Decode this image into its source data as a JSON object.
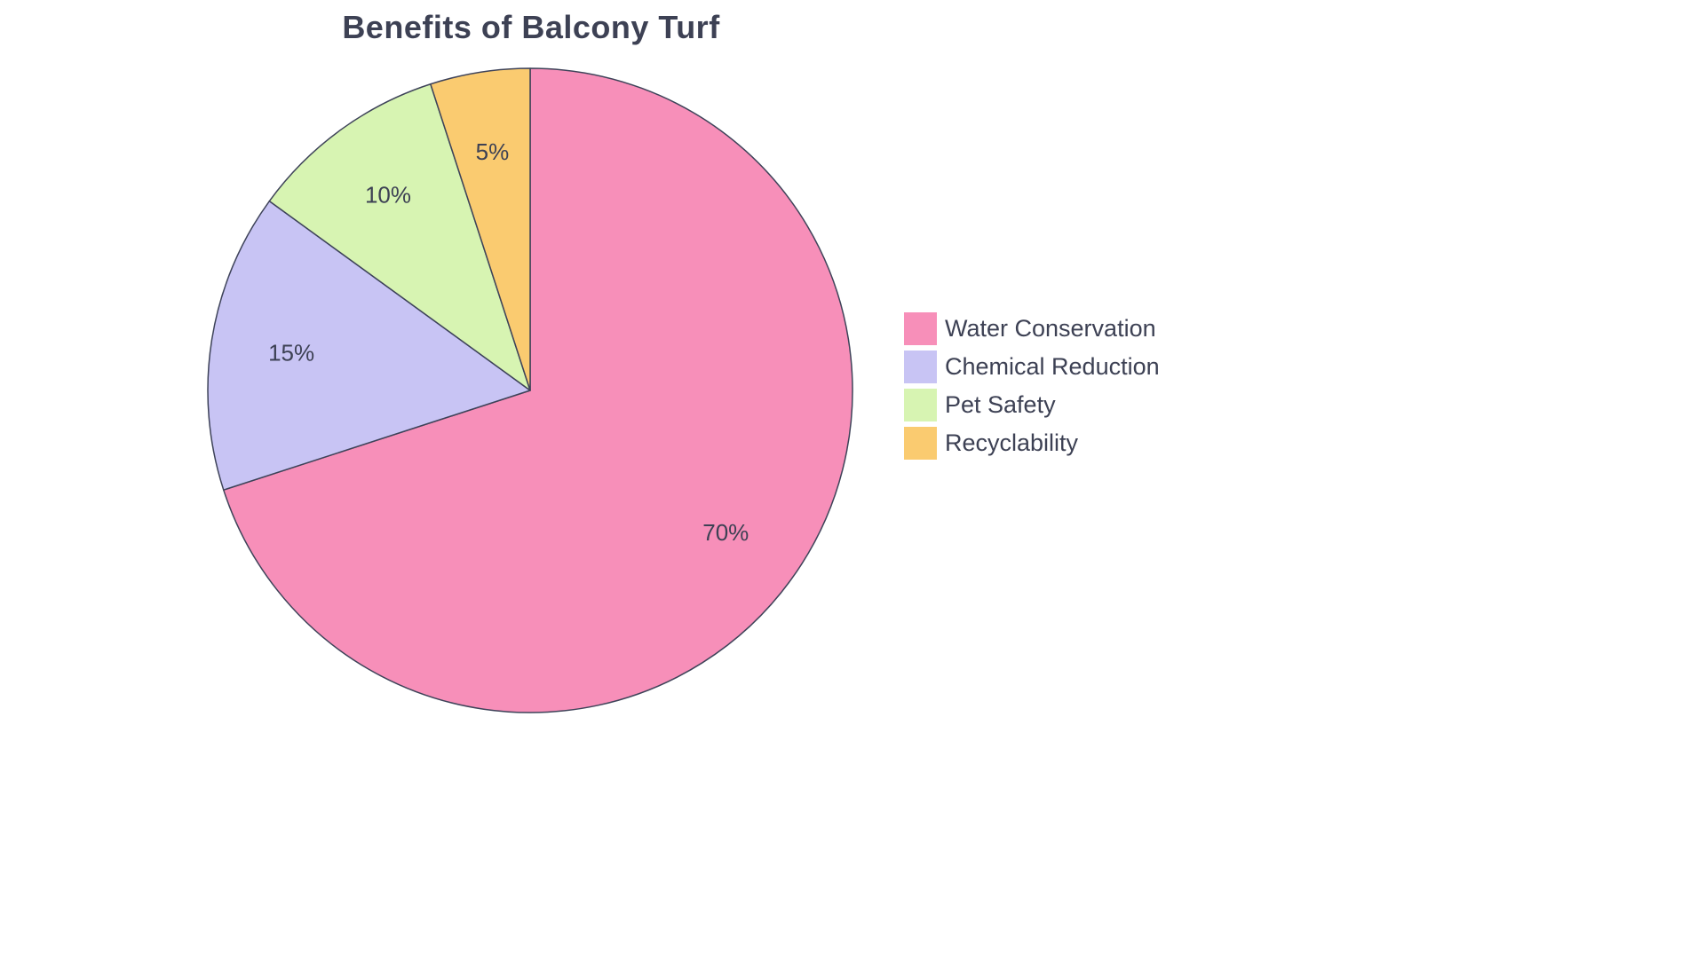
{
  "chart_data": {
    "type": "pie",
    "title": "Benefits of Balcony Turf",
    "categories": [
      "Water Conservation",
      "Chemical Reduction",
      "Pet Safety",
      "Recyclability"
    ],
    "values": [
      70,
      15,
      10,
      5
    ],
    "labels": [
      "70%",
      "15%",
      "10%",
      "5%"
    ],
    "colors": [
      "#F78FB9",
      "#C8C4F4",
      "#D7F4B2",
      "#FACB70"
    ],
    "stroke_color": "#3E4359",
    "label_color": "#3d4154",
    "title_color": "#3d4154",
    "legend_position": "right",
    "start_angle_deg": 0,
    "direction": "clockwise",
    "background": "#ffffff"
  }
}
